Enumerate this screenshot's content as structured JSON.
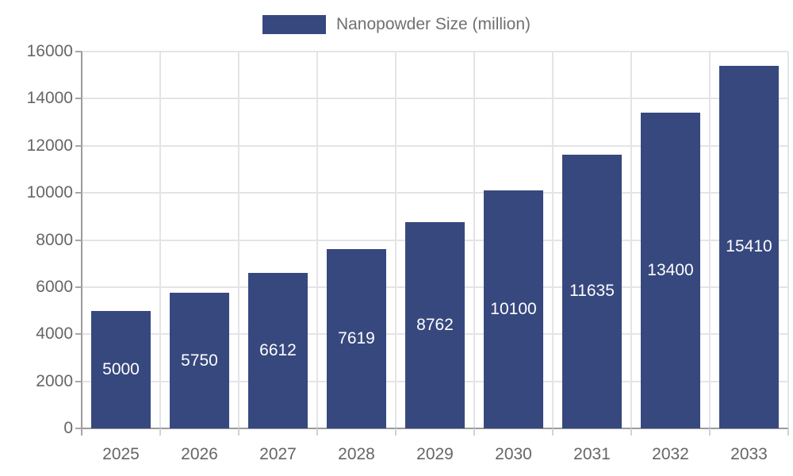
{
  "legend": {
    "label": "Nanopowder Size (million)"
  },
  "chart_data": {
    "type": "bar",
    "title": "",
    "xlabel": "",
    "ylabel": "",
    "categories": [
      "2025",
      "2026",
      "2027",
      "2028",
      "2029",
      "2030",
      "2031",
      "2032",
      "2033"
    ],
    "series": [
      {
        "name": "Nanopowder Size (million)",
        "values": [
          5000,
          5750,
          6612,
          7619,
          8762,
          10100,
          11635,
          13400,
          15410
        ]
      }
    ],
    "values": [
      5000,
      5750,
      6612,
      7619,
      8762,
      10100,
      11635,
      13400,
      15410
    ],
    "bar_labels": [
      "5000",
      "5750",
      "6612",
      "7619",
      "8762",
      "10100",
      "11635",
      "13400",
      "15410"
    ],
    "ylim": [
      0,
      16000
    ],
    "yticks": [
      0,
      2000,
      4000,
      6000,
      8000,
      10000,
      12000,
      14000,
      16000
    ],
    "grid": true,
    "legend_position": "top-center",
    "colors": {
      "bar": "#37487E",
      "bar_label": "#FFFFFF",
      "grid": "#E4E4E8",
      "axis": "#9B9B9B",
      "ytick_mark": "#A6A6A6",
      "xtick_mark": "#D2D2D6",
      "tick_label": "#666666",
      "legend_text": "#707070",
      "background": "#FFFFFF"
    }
  }
}
